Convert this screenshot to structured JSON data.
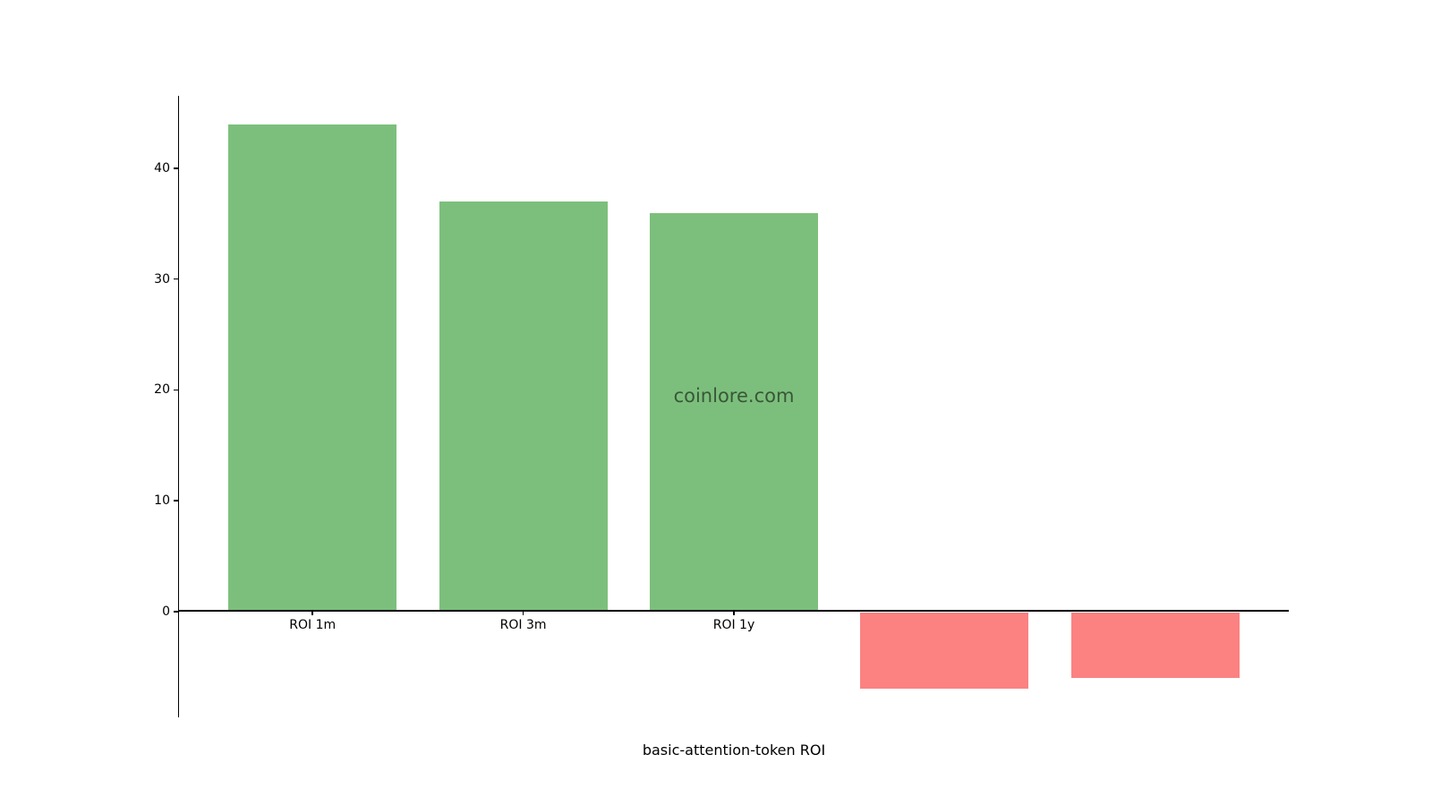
{
  "chart_data": {
    "type": "bar",
    "categories": [
      "ROI 1m",
      "ROI 3m",
      "ROI 1y",
      "",
      ""
    ],
    "values": [
      44,
      37,
      36,
      -7,
      -6
    ],
    "title": "basic-attention-token ROI",
    "watermark": "coinlore.com",
    "xlabel": "basic-attention-token ROI",
    "ylabel": "",
    "ytick_labels": [
      "0",
      "10",
      "20",
      "30",
      "40"
    ],
    "yticks": [
      0,
      10,
      20,
      30,
      40
    ],
    "ylim": [
      -9.55,
      46.55
    ],
    "grid": false,
    "legend": false,
    "positive_color": "#7cbf7c",
    "negative_color": "#fc8181",
    "axis_color": "#000000",
    "text_color": "#000000"
  }
}
